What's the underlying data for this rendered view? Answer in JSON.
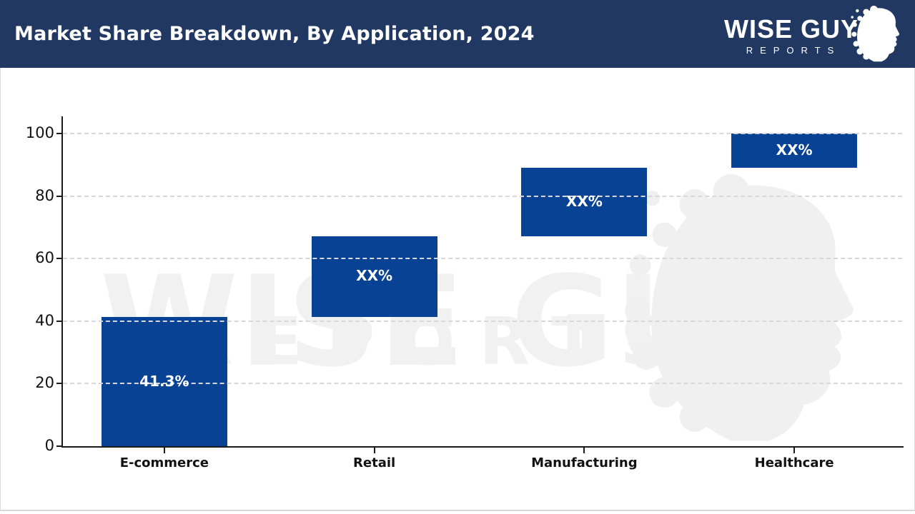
{
  "header": {
    "title": "Market Share Breakdown, By Application, 2024",
    "logo": {
      "line1": "WISE GUY",
      "line2": "REPORTS"
    }
  },
  "watermark": {
    "line1": "WISE GUY",
    "line2": "REPORTS"
  },
  "chart_data": {
    "type": "bar",
    "subtype": "waterfall",
    "title": "Market Share Breakdown, By Application, 2024",
    "categories": [
      "E-commerce",
      "Retail",
      "Manufacturing",
      "Healthcare"
    ],
    "segments": [
      {
        "category": "E-commerce",
        "start": 0,
        "end": 41.3,
        "value": 41.3,
        "label": "41.3%"
      },
      {
        "category": "Retail",
        "start": 41.3,
        "end": 67.2,
        "value": 25.9,
        "label": "XX%"
      },
      {
        "category": "Manufacturing",
        "start": 67.2,
        "end": 89.1,
        "value": 21.9,
        "label": "XX%"
      },
      {
        "category": "Healthcare",
        "start": 89.1,
        "end": 100,
        "value": 10.9,
        "label": "XX%"
      }
    ],
    "xlabel": "",
    "ylabel": "",
    "ylim": [
      0,
      105
    ],
    "yticks": [
      0,
      20,
      40,
      60,
      80,
      100
    ],
    "grid": true,
    "legend": null,
    "bar_color": "#084294",
    "bar_label_color": "#ffffff"
  },
  "colors": {
    "header_bg": "#213863",
    "bar": "#084294",
    "gridline": "#d8d8d8",
    "watermark": "#f1f1f1",
    "frame": "#d9d9d9"
  }
}
